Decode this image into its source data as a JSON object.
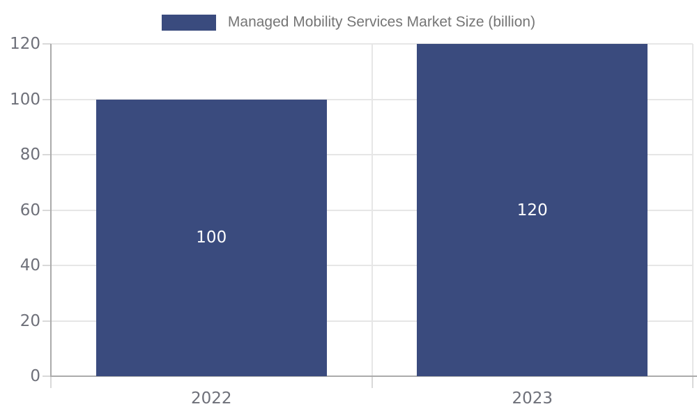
{
  "chart_data": {
    "type": "bar",
    "title": "Managed Mobility Services Market Size (billion)",
    "categories": [
      "2022",
      "2023"
    ],
    "series": [
      {
        "name": "Managed Mobility Services Market Size (billion)",
        "values": [
          100,
          120
        ]
      }
    ],
    "value_labels": [
      "100",
      "120"
    ],
    "yticks": [
      0,
      20,
      40,
      60,
      80,
      100,
      120
    ],
    "ylim": [
      0,
      120
    ],
    "xlabel": "",
    "ylabel": "",
    "grid": true,
    "legend_position": "top-center",
    "legend_entries": [
      "Managed Mobility Services Market Size (billion)"
    ]
  },
  "legend": {
    "label": "Managed Mobility Services Market Size (billion)",
    "swatch_color": "#3A4B7E"
  },
  "colors": {
    "bar": "#3A4B7E",
    "bar_value_text": "#ffffff",
    "axis_line": "#ababab",
    "grid_line": "#e6e6e6",
    "tick_mark": "#d9d9d9",
    "tick_text": "#6e7079",
    "legend_text": "#757575",
    "background": "#ffffff"
  }
}
